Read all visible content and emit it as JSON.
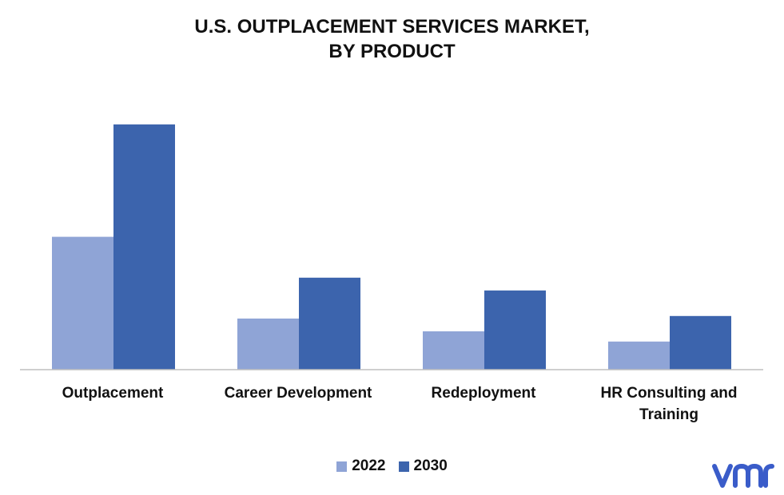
{
  "chart_data": {
    "type": "bar",
    "title": [
      "U.S. OUTPLACEMENT SERVICES MARKET,",
      "BY PRODUCT"
    ],
    "categories": [
      "Outplacement",
      "Career Development",
      "Redeployment",
      "HR Consulting and Training"
    ],
    "series": [
      {
        "name": "2022",
        "color": "#8FA4D6",
        "values": [
          5.2,
          2.0,
          1.5,
          1.1
        ]
      },
      {
        "name": "2030",
        "color": "#3C64AD",
        "values": [
          9.6,
          3.6,
          3.1,
          2.1
        ]
      }
    ],
    "xlabel": "",
    "ylabel": "",
    "ylim": [
      0,
      10
    ],
    "grid": false,
    "legend_position": "bottom"
  },
  "brand": {
    "logo_icon": "vmr-logo-icon",
    "logo_color": "#3A5CC9"
  }
}
